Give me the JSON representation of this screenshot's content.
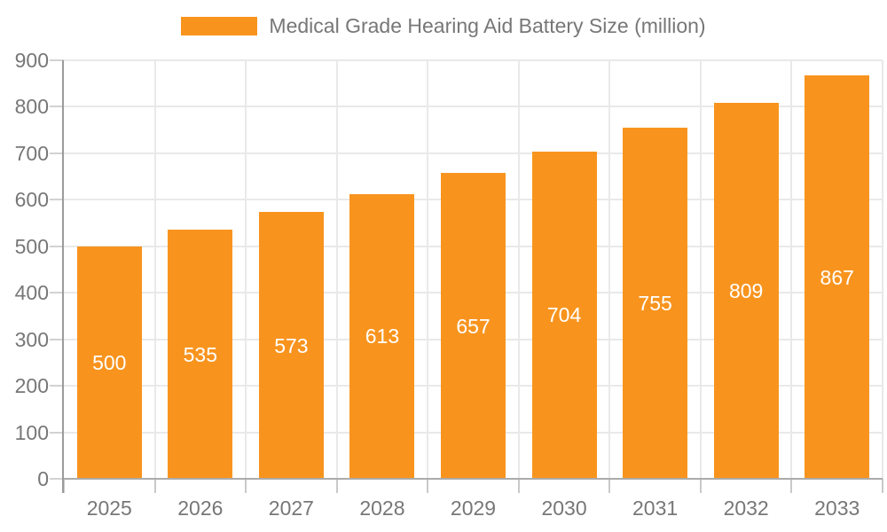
{
  "chart_data": {
    "type": "bar",
    "title": "Medical Grade Hearing Aid Battery Size (million)",
    "categories": [
      "2025",
      "2026",
      "2027",
      "2028",
      "2029",
      "2030",
      "2031",
      "2032",
      "2033"
    ],
    "values": [
      500,
      535,
      573,
      613,
      657,
      704,
      755,
      809,
      867
    ],
    "xlabel": "",
    "ylabel": "",
    "ylim": [
      0,
      900
    ],
    "ytick_step": 100,
    "yticks": [
      0,
      100,
      200,
      300,
      400,
      500,
      600,
      700,
      800,
      900
    ],
    "grid": true,
    "legend_position": "top-center",
    "bar_color": "#F8941E",
    "value_label_color": "#FFFFFF",
    "axis_text_color": "#777777"
  }
}
